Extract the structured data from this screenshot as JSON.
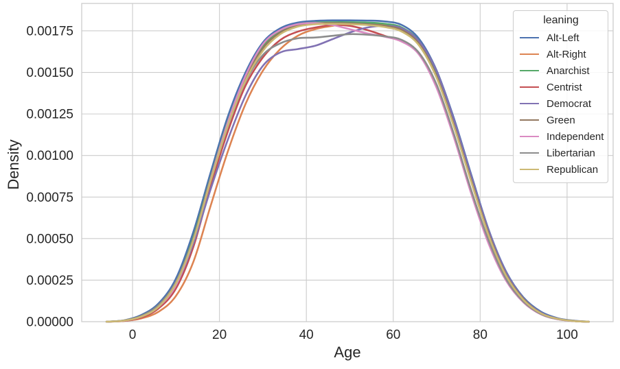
{
  "figure": {
    "background": "#ffffff"
  },
  "colors": {
    "grid": "#cccccc",
    "axis_border": "#cccccc",
    "text": "#262626",
    "legend_border": "#cccccc",
    "legend_background": "rgba(255,255,255,0.85)"
  },
  "chart_data": {
    "type": "line",
    "kind": "kde-density",
    "title": "",
    "xlabel": "Age",
    "ylabel": "Density",
    "legend_title": "leaning",
    "legend_position": "upper right",
    "grid": true,
    "xlim": [
      -11.7,
      110.6
    ],
    "ylim_1e5": [
      0,
      191.5
    ],
    "x_ticks": {
      "values": [
        0,
        20,
        40,
        60,
        80,
        100
      ],
      "labels": [
        "0",
        "20",
        "40",
        "60",
        "80",
        "100"
      ]
    },
    "y_ticks": {
      "values_1e5": [
        0,
        25,
        50,
        75,
        100,
        125,
        150,
        175
      ],
      "labels": [
        "0.00000",
        "0.00025",
        "0.00050",
        "0.00075",
        "0.00100",
        "0.00125",
        "0.00150",
        "0.00175"
      ]
    },
    "density_note": "density values are stored multiplied by 1e5 (e.g. 181 means 0.00181)",
    "ages": [
      -6,
      -2,
      2,
      6,
      10,
      14,
      18,
      22,
      26,
      30,
      34,
      38,
      42,
      46,
      50,
      54,
      58,
      62,
      66,
      70,
      74,
      78,
      82,
      86,
      90,
      94,
      98,
      102,
      105
    ],
    "series": [
      {
        "name": "Alt-Left",
        "color": "#4C72B0",
        "values_1e5": [
          0,
          0.8,
          4,
          11,
          26,
          54,
          90,
          124,
          150,
          168,
          176.5,
          180,
          181,
          181.3,
          181.3,
          181.2,
          180.7,
          178.5,
          170,
          151,
          122,
          88,
          55,
          30,
          14.5,
          6,
          2,
          0.5,
          0
        ]
      },
      {
        "name": "Alt-Right",
        "color": "#DD8452",
        "values_1e5": [
          0,
          0.4,
          2,
          6,
          15.5,
          36,
          70,
          103,
          131,
          151,
          164,
          172,
          176,
          178,
          179,
          179.5,
          178.7,
          175.5,
          167,
          148,
          118,
          84,
          51.5,
          27.5,
          13,
          5,
          1.6,
          0.3,
          0
        ]
      },
      {
        "name": "Anarchist",
        "color": "#55A868",
        "values_1e5": [
          0,
          0.7,
          3.5,
          10,
          24,
          51,
          87,
          121,
          147.5,
          166,
          175,
          179,
          180,
          180.2,
          180.2,
          180,
          179.3,
          177,
          168.5,
          149,
          120,
          86,
          53.5,
          29,
          14,
          5.5,
          1.8,
          0.4,
          0
        ]
      },
      {
        "name": "Centrist",
        "color": "#C44E52",
        "values_1e5": [
          0,
          0.5,
          2.5,
          8,
          20,
          45,
          82,
          115,
          142,
          159,
          169.5,
          174.5,
          177,
          178.5,
          178,
          175.5,
          172,
          168.5,
          161.5,
          142,
          112,
          78.5,
          48,
          25,
          12,
          4.5,
          1.4,
          0.3,
          0
        ]
      },
      {
        "name": "Democrat",
        "color": "#8172B3",
        "values_1e5": [
          0,
          0.6,
          3,
          9,
          22,
          47,
          80,
          110,
          136,
          154,
          162,
          164,
          166,
          170,
          174,
          177,
          178,
          176.5,
          168.5,
          150.5,
          121,
          87,
          54.5,
          29.5,
          14,
          5.5,
          1.8,
          0.4,
          0
        ]
      },
      {
        "name": "Green",
        "color": "#937860",
        "values_1e5": [
          0,
          0.7,
          3.5,
          10,
          24,
          50,
          86,
          119.5,
          146,
          164.5,
          174,
          178,
          179.5,
          179.7,
          179.5,
          179,
          178,
          175.5,
          167,
          147.5,
          118,
          84.5,
          52.5,
          28,
          13.5,
          5,
          1.6,
          0.3,
          0
        ]
      },
      {
        "name": "Independent",
        "color": "#DA8BC3",
        "values_1e5": [
          0,
          0.6,
          3,
          9,
          22,
          49,
          86,
          120.5,
          148,
          167,
          175.5,
          179,
          179.7,
          178.5,
          176,
          173.5,
          171.5,
          168.5,
          160.5,
          140.5,
          110.5,
          76.5,
          46.5,
          24.5,
          11.5,
          4.4,
          1.4,
          0.3,
          0
        ]
      },
      {
        "name": "Libertarian",
        "color": "#8C8C8C",
        "values_1e5": [
          0,
          0.7,
          3.5,
          10,
          24,
          50,
          85,
          118,
          144.5,
          160.5,
          167.5,
          170.5,
          171,
          172,
          173,
          172.7,
          171.7,
          169.5,
          161.5,
          142.5,
          112.5,
          78.5,
          48.5,
          25.5,
          12,
          4.6,
          1.5,
          0.3,
          0
        ]
      },
      {
        "name": "Republican",
        "color": "#CCB974",
        "values_1e5": [
          0,
          0.6,
          3,
          9,
          23,
          49,
          85,
          118.5,
          145,
          163,
          173,
          177.5,
          179,
          179.2,
          179,
          178.5,
          177.3,
          174.5,
          166,
          146.5,
          117,
          83.5,
          51.5,
          27.5,
          13,
          5,
          1.6,
          0.3,
          0
        ]
      }
    ]
  }
}
